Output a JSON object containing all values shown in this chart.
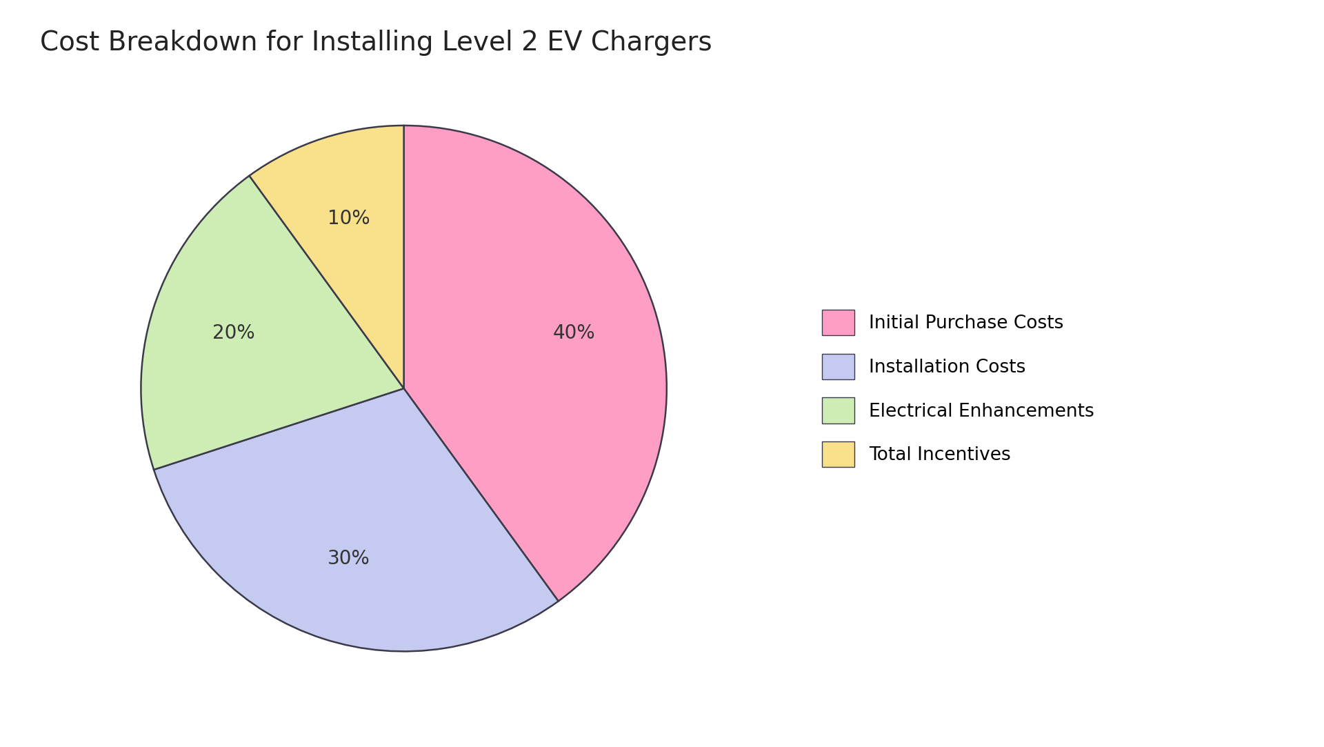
{
  "title": "Cost Breakdown for Installing Level 2 EV Chargers",
  "labels": [
    "Initial Purchase Costs",
    "Installation Costs",
    "Electrical Enhancements",
    "Total Incentives"
  ],
  "values": [
    40,
    30,
    20,
    10
  ],
  "colors": [
    "#FF9EC4",
    "#C5CAF0",
    "#CEEDB5",
    "#F9E08A"
  ],
  "edge_color": "#3a3a4a",
  "edge_linewidth": 1.8,
  "title_fontsize": 28,
  "pct_fontsize": 20,
  "legend_fontsize": 19,
  "background_color": "#ffffff",
  "startangle": 90,
  "pct_distance": 0.68
}
